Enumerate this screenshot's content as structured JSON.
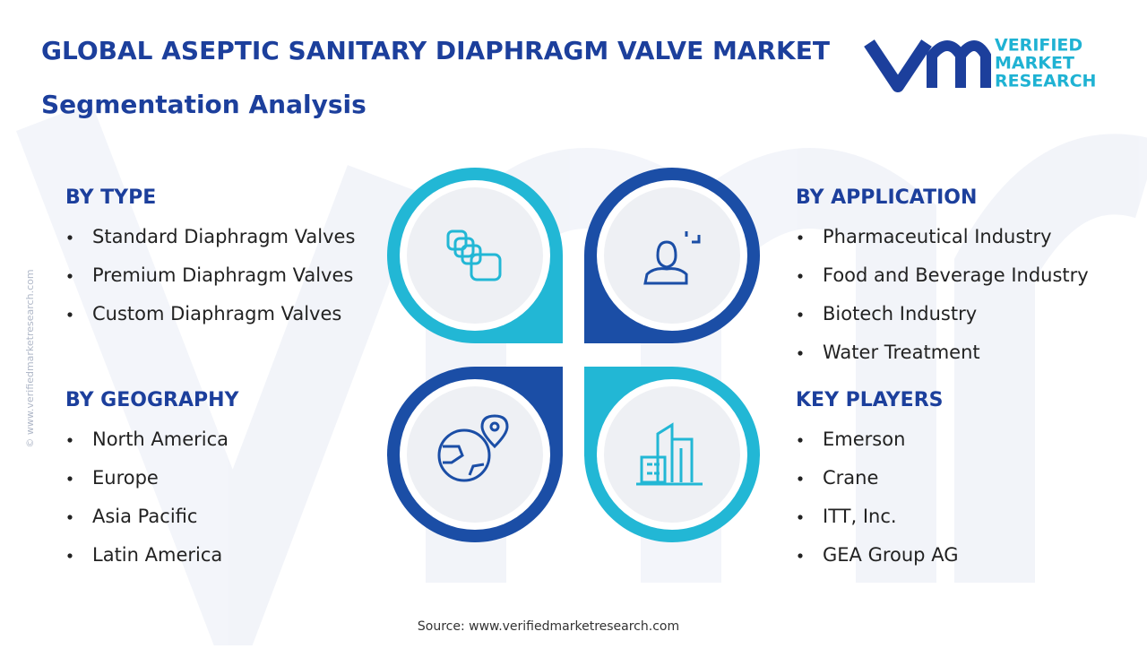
{
  "header": {
    "title": "GLOBAL ASEPTIC SANITARY DIAPHRAGM VALVE MARKET",
    "subtitle": "Segmentation Analysis"
  },
  "logo": {
    "lines": [
      "VERIFIED",
      "MARKET",
      "RESEARCH"
    ]
  },
  "watermark": "© www.verifiedmarketresearch.com",
  "segments": [
    {
      "heading": "BY TYPE",
      "items": [
        "Standard Diaphragm Valves",
        "Premium Diaphragm Valves",
        "Custom Diaphragm Valves"
      ]
    },
    {
      "heading": "BY APPLICATION",
      "items": [
        "Pharmaceutical Industry",
        "Food and Beverage Industry",
        "Biotech Industry",
        "Water Treatment"
      ]
    },
    {
      "heading": "BY GEOGRAPHY",
      "items": [
        "North America",
        "Europe",
        "Asia Pacific",
        "Latin America"
      ]
    },
    {
      "heading": "KEY PLAYERS",
      "items": [
        "Emerson",
        "Crane",
        "ITT, Inc.",
        "GEA Group AG"
      ]
    }
  ],
  "source": "Source: www.verifiedmarketresearch.com"
}
